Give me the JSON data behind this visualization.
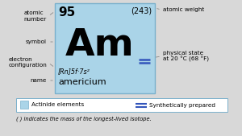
{
  "atomic_number": "95",
  "atomic_weight": "(243)",
  "symbol": "Am",
  "electron_config": "[Rn]5f·7s²",
  "name": "americium",
  "physical_state_label": "physical state\nat 20 °C (68 °F)",
  "box_color": "#aad4e8",
  "box_border_color": "#7ab0cc",
  "bg_color": "#d8d8d8",
  "legend_box_color": "#aad4e8",
  "legend_border_color": "#7ab0cc",
  "footnote": "( ) indicates the mass of the longest-lived isotope.",
  "label_atomic_number": "atomic\nnumber",
  "label_symbol": "symbol",
  "label_electron_config": "electron\nconfiguration",
  "label_name": "name",
  "label_atomic_weight": "atomic weight",
  "legend_actinide": "Actinide elements",
  "legend_synthetic": "Synthetically prepared",
  "double_line_color": "#3355bb"
}
